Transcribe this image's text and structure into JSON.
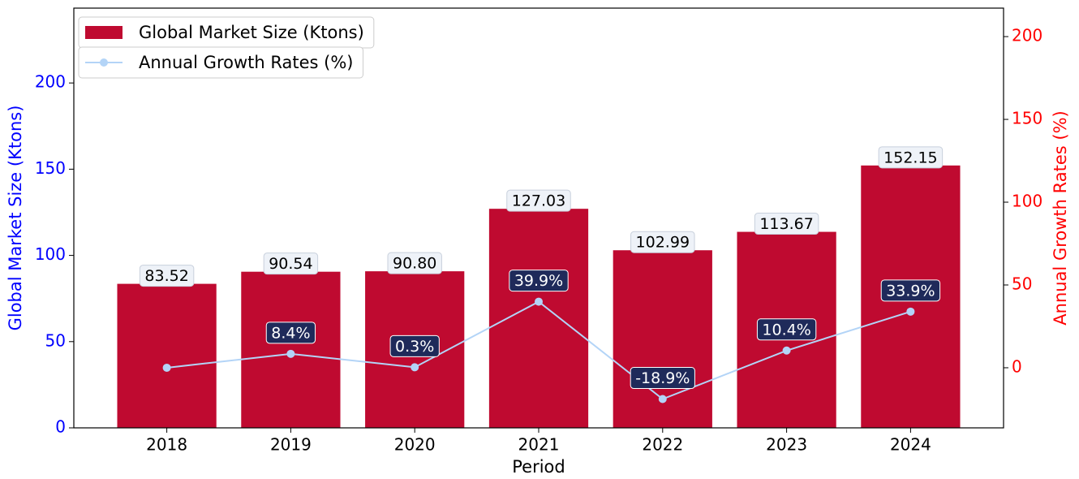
{
  "chart_data": {
    "type": "bar_line",
    "categories": [
      "2018",
      "2019",
      "2020",
      "2021",
      "2022",
      "2023",
      "2024"
    ],
    "xlabel": "Period",
    "ylabel": "Global Market Size (Ktons)",
    "y2label": "Annual Growth Rates (%)",
    "ylabel_color": "#0000ff",
    "y2label_color": "#ff0000",
    "ylim": [
      0,
      243.4
    ],
    "yticks": [
      0,
      50,
      100,
      150,
      200
    ],
    "y2lim": [
      -36.3,
      217.2
    ],
    "y2ticks": [
      0,
      50,
      100,
      150,
      200
    ],
    "legend": "upper left",
    "series": [
      {
        "name": "Global Market Size (Ktons)",
        "type": "bar",
        "color": "#bf0a30",
        "values": [
          83.52,
          90.54,
          90.8,
          127.03,
          102.99,
          113.67,
          152.15
        ],
        "value_labels": [
          "83.52",
          "90.54",
          "90.80",
          "127.03",
          "102.99",
          "113.67",
          "152.15"
        ]
      },
      {
        "name": "Annual Growth Rates (%)",
        "type": "line",
        "axis": "y2",
        "color": "#b3d4f7",
        "values": [
          0,
          8.4,
          0.3,
          39.9,
          -18.9,
          10.4,
          33.9
        ],
        "value_labels": [
          null,
          "8.4%",
          "0.3%",
          "39.9%",
          "-18.9%",
          "10.4%",
          "33.9%"
        ]
      }
    ]
  }
}
